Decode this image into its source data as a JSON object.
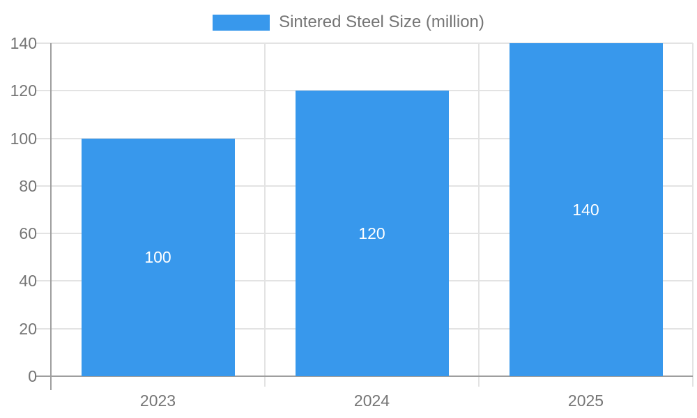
{
  "legend": {
    "label": "Sintered Steel Size (million)"
  },
  "colors": {
    "bar": "#3898ec",
    "axis": "#9e9e9e",
    "grid": "#e3e3e3",
    "text": "#757575",
    "bar_label": "#ffffff"
  },
  "chart_data": {
    "type": "bar",
    "title": "Sintered Steel Size (million)",
    "categories": [
      "2023",
      "2024",
      "2025"
    ],
    "series": [
      {
        "name": "Sintered Steel Size (million)",
        "values": [
          100,
          120,
          140
        ]
      }
    ],
    "data_labels": [
      100,
      120,
      140
    ],
    "xlabel": "",
    "ylabel": "",
    "ylim": [
      0,
      140
    ],
    "yticks": [
      0,
      20,
      40,
      60,
      80,
      100,
      120,
      140
    ],
    "grid": true,
    "legend_position": "top"
  }
}
